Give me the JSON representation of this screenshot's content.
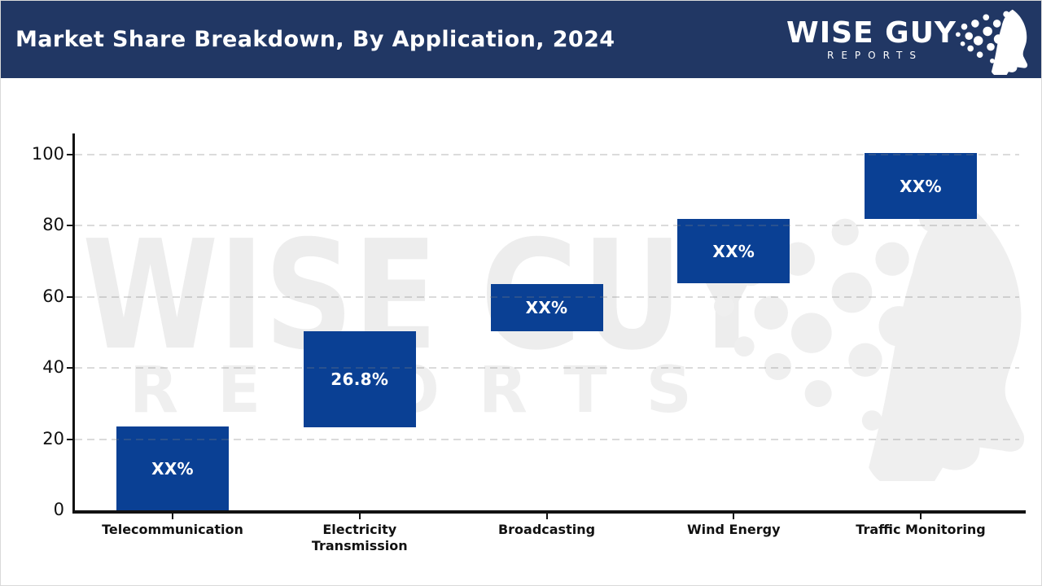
{
  "header": {
    "title": "Market Share Breakdown, By Application, 2024",
    "logo": {
      "line1": "WISE GUY",
      "line2": "REPORTS"
    }
  },
  "watermark": {
    "line1": "WISE GUY",
    "line2": "REPORTS"
  },
  "chart_data": {
    "type": "bar",
    "subtype": "waterfall",
    "title": "Market Share Breakdown, By Application, 2024",
    "categories": [
      "Telecommunication",
      "Electricity Transmission",
      "Broadcasting",
      "Wind Energy",
      "Traffic Monitoring"
    ],
    "segments": [
      {
        "category": "Telecommunication",
        "start": 0,
        "end": 23.5,
        "value_label": "XX%"
      },
      {
        "category": "Electricity Transmission",
        "start": 23.4,
        "end": 50.2,
        "value_label": "26.8%"
      },
      {
        "category": "Broadcasting",
        "start": 50.3,
        "end": 63.5,
        "value_label": "XX%"
      },
      {
        "category": "Wind Energy",
        "start": 63.8,
        "end": 81.8,
        "value_label": "XX%"
      },
      {
        "category": "Traffic Monitoring",
        "start": 81.8,
        "end": 100.3,
        "value_label": "XX%"
      }
    ],
    "yticks": [
      0,
      20,
      40,
      60,
      80,
      100
    ],
    "ylim": [
      0,
      105.8
    ],
    "xlabel": "",
    "ylabel": "",
    "grid": "horizontal dashed, drawn over bars",
    "legend": "none",
    "bar_color": "#0a4094"
  },
  "colors": {
    "header_bg": "#213764",
    "bar": "#0a4094",
    "axis": "#121212",
    "text": "#111111",
    "watermark": "#ededed",
    "frame_border": "#d9d9d9"
  }
}
